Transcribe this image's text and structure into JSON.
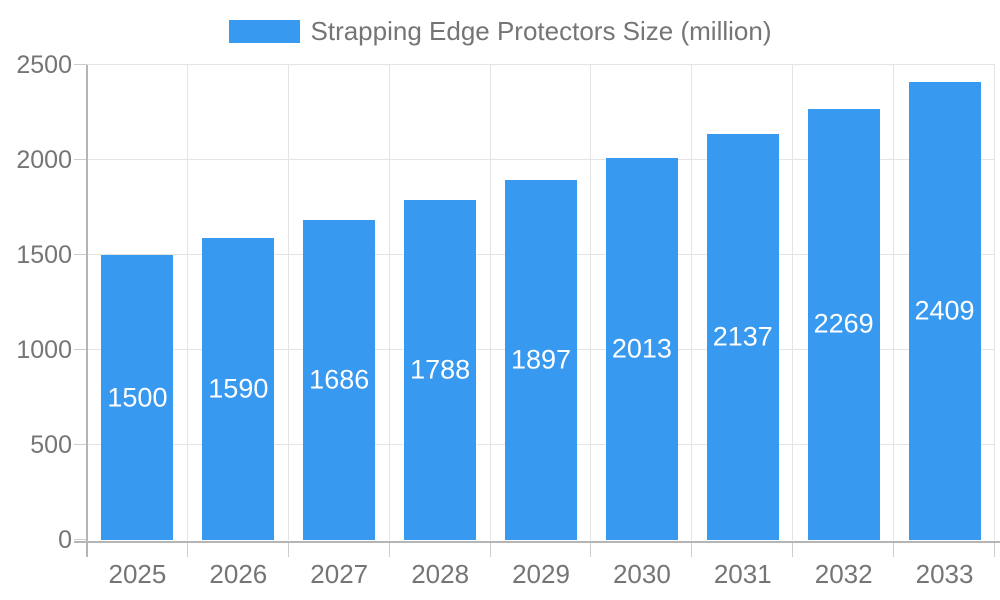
{
  "colors": {
    "bar": "#3899f0",
    "grid_line": "#e4e4e4",
    "axis_line": "#b5b5b5",
    "tick_line": "#cdcdcd",
    "label_text": "#757575",
    "bar_label_text": "#ffffff",
    "background": "#ffffff"
  },
  "legend": {
    "label": "Strapping Edge Protectors Size (million)"
  },
  "chart_data": {
    "type": "bar",
    "title": "Strapping Edge Protectors Size (million)",
    "categories": [
      "2025",
      "2026",
      "2027",
      "2028",
      "2029",
      "2030",
      "2031",
      "2032",
      "2033"
    ],
    "values": [
      1500,
      1590,
      1686,
      1788,
      1897,
      2013,
      2137,
      2269,
      2409
    ],
    "xlabel": "",
    "ylabel": "",
    "ylim": [
      0,
      2500
    ],
    "yticks": [
      0,
      500,
      1000,
      1500,
      2000,
      2500
    ],
    "grid": true,
    "legend_position": "top-center",
    "value_label_position": "inside-center"
  }
}
